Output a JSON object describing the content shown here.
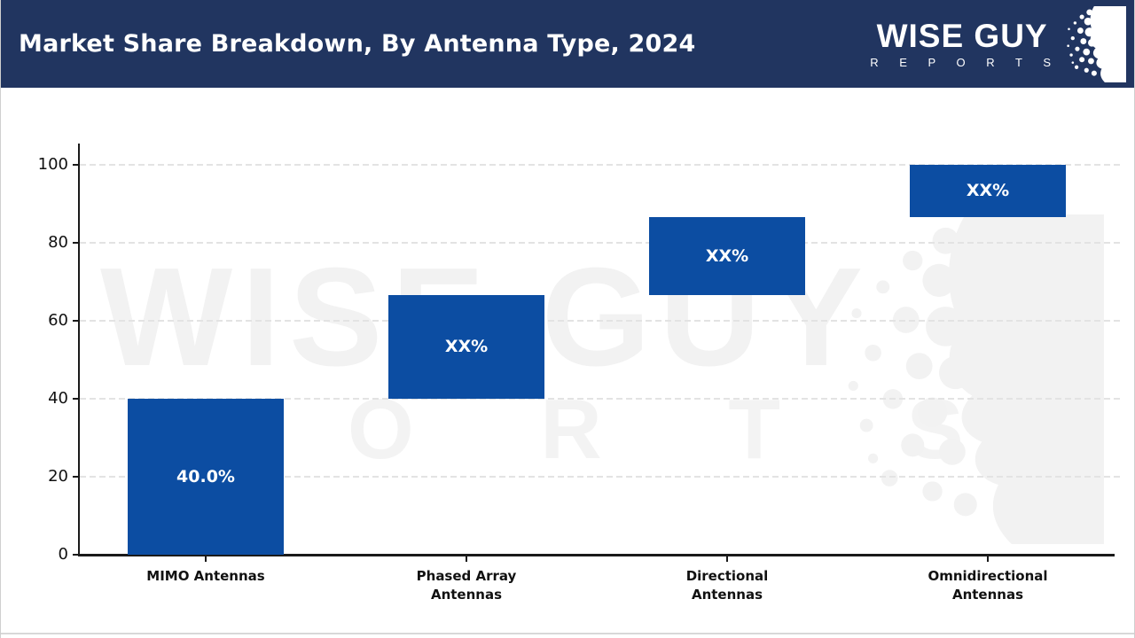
{
  "page": {
    "background": "#ffffff",
    "border_color": "#cfcfcf",
    "bottom_rule_color": "#d8d8d8"
  },
  "header": {
    "title": "Market Share Breakdown, By Antenna Type, 2024",
    "background": "#213560",
    "text_color": "#ffffff",
    "logo": {
      "line1": "WISE GUY",
      "line2": "R E P O R T S",
      "icon": "wiseguy-face-icon"
    }
  },
  "watermark": {
    "line1": "WISE GUY",
    "line2": "P O R T S",
    "color": "#f2f2f2"
  },
  "chart_data": {
    "type": "bar",
    "variant": "waterfall",
    "title": "Market Share Breakdown, By Antenna Type, 2024",
    "categories": [
      "MIMO Antennas",
      "Phased Array\nAntennas",
      "Directional\nAntennas",
      "Omnidirectional\nAntennas"
    ],
    "bars": [
      {
        "category": "MIMO Antennas",
        "start": 0,
        "end": 40,
        "increment": 40.0,
        "label": "40.0%"
      },
      {
        "category": "Phased Array Antennas",
        "start": 40,
        "end": 66.7,
        "increment": 26.7,
        "label": "XX%"
      },
      {
        "category": "Directional Antennas",
        "start": 66.7,
        "end": 86.7,
        "increment": 20.0,
        "label": "XX%"
      },
      {
        "category": "Omnidirectional Antennas",
        "start": 86.7,
        "end": 100,
        "increment": 13.3,
        "label": "XX%"
      }
    ],
    "ylim": [
      0,
      100
    ],
    "yticks": [
      0,
      20,
      40,
      60,
      80,
      100
    ],
    "grid": "horizontal-dashed",
    "grid_color": "#e3e3e3",
    "axis_color": "#1a1a1a",
    "bar_color": "#0c4da2",
    "bar_label_color": "#ffffff",
    "legend": "none"
  }
}
